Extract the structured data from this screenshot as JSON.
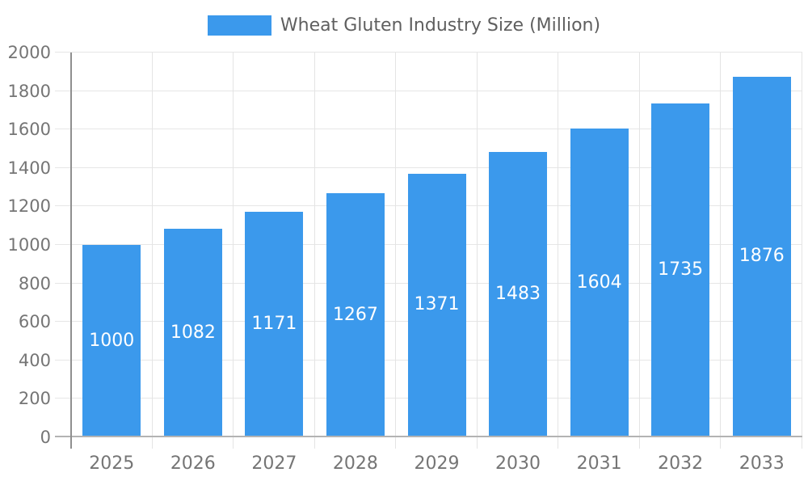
{
  "legend": {
    "label": "Wheat Gluten Industry Size (Million)"
  },
  "colors": {
    "bar": "#3B99EC",
    "value_label": "#FFFFFF",
    "grid_line": "#E6E6E6",
    "axis_line": "#8F8F8F",
    "baseline": "#B3B3B3",
    "tick_label": "#757575",
    "legend_text": "#5F5F5F",
    "background": "#FFFFFF"
  },
  "chart_data": {
    "type": "bar",
    "title": "",
    "series_name": "Wheat Gluten Industry Size (Million)",
    "categories": [
      "2025",
      "2026",
      "2027",
      "2028",
      "2029",
      "2030",
      "2031",
      "2032",
      "2033"
    ],
    "values": [
      1000,
      1082,
      1171,
      1267,
      1371,
      1483,
      1604,
      1735,
      1876
    ],
    "xlabel": "",
    "ylabel": "",
    "ylim": [
      0,
      2000
    ],
    "ytick_step": 200,
    "grid": true,
    "legend_position": "top-center",
    "value_labels": "inside-center"
  }
}
